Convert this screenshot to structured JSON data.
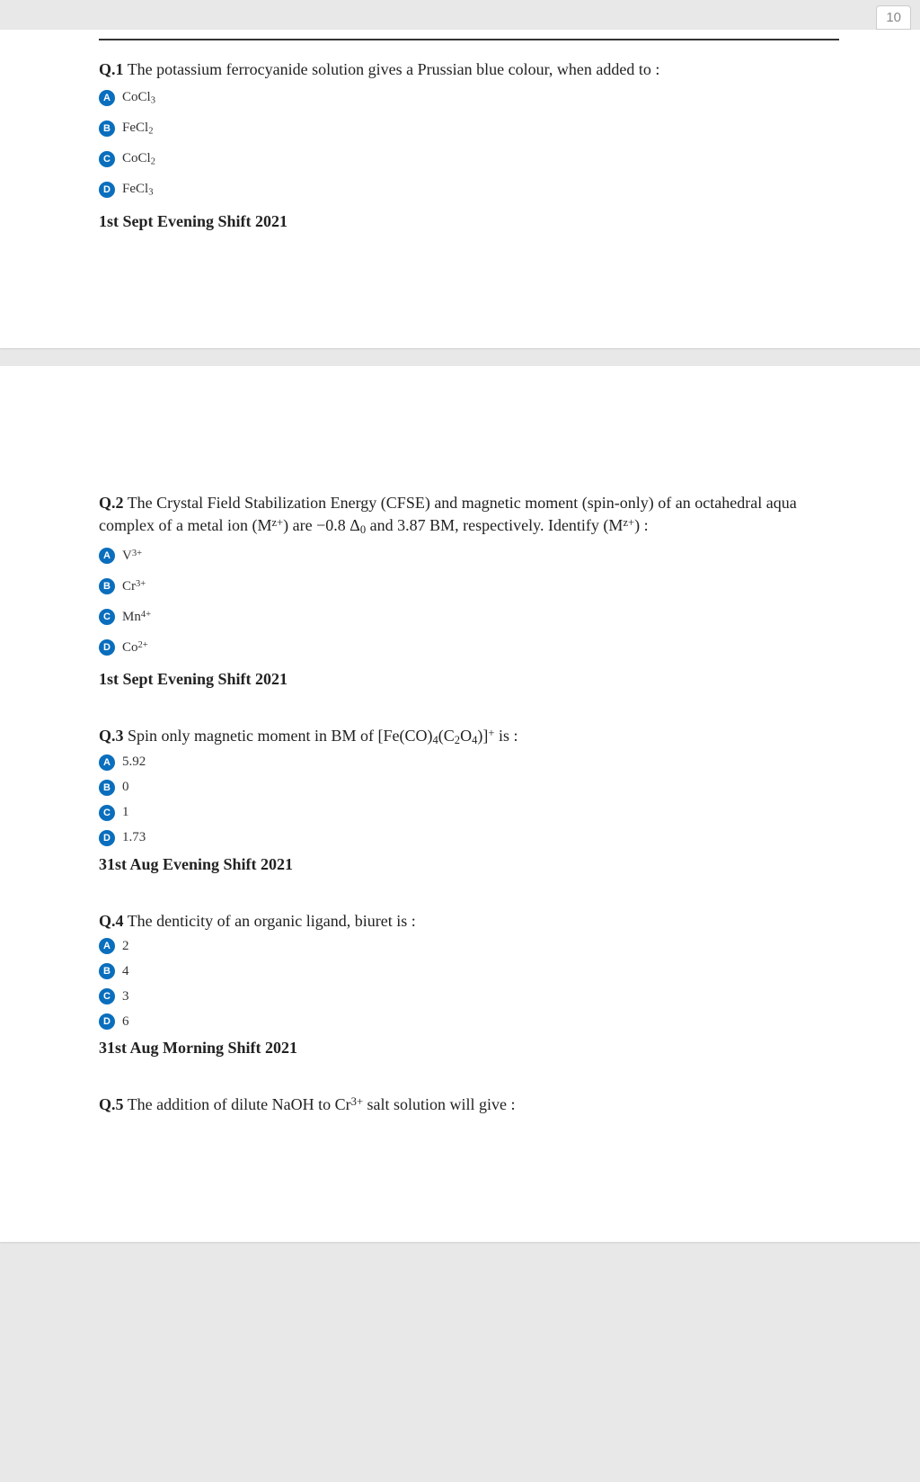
{
  "nav": {
    "label": "10"
  },
  "cards": [
    {
      "questions": [
        {
          "number": "Q.1",
          "text": " The potassium ferrocyanide solution gives a Prussian blue colour, when added to :",
          "options": [
            {
              "letter": "A",
              "html": "CoCl<sub>3</sub>"
            },
            {
              "letter": "B",
              "html": "FeCl<sub>2</sub>"
            },
            {
              "letter": "C",
              "html": "CoCl<sub>2</sub>"
            },
            {
              "letter": "D",
              "html": "FeCl<sub>3</sub>"
            }
          ],
          "shift": "1st Sept Evening Shift 2021"
        }
      ]
    },
    {
      "questions": [
        {
          "number": "Q.2",
          "text": " The Crystal Field Stabilization Energy (CFSE) and magnetic moment (spin-only) of an octahedral aqua complex of a metal ion (M<sup>z+</sup>) are −0.8 Δ<sub>0</sub> and 3.87 BM, respectively. Identify (M<sup>z+</sup>) :",
          "options": [
            {
              "letter": "A",
              "html": "V<sup>3+</sup>"
            },
            {
              "letter": "B",
              "html": "Cr<sup>3+</sup>"
            },
            {
              "letter": "C",
              "html": "Mn<sup>4+</sup>"
            },
            {
              "letter": "D",
              "html": "Co<sup>2+</sup>"
            }
          ],
          "shift": "1st Sept Evening Shift 2021"
        },
        {
          "number": "Q.3",
          "text": " Spin only magnetic moment in BM of [Fe(CO)<sub>4</sub>(C<sub>2</sub>O<sub>4</sub>)]<sup>+</sup> is :",
          "options": [
            {
              "letter": "A",
              "html": "5.92"
            },
            {
              "letter": "B",
              "html": "0"
            },
            {
              "letter": "C",
              "html": "1"
            },
            {
              "letter": "D",
              "html": "1.73"
            }
          ],
          "shift": "31st Aug Evening Shift 2021"
        },
        {
          "number": "Q.4",
          "text": " The denticity of an organic ligand, biuret is :",
          "options": [
            {
              "letter": "A",
              "html": "2"
            },
            {
              "letter": "B",
              "html": "4"
            },
            {
              "letter": "C",
              "html": "3"
            },
            {
              "letter": "D",
              "html": "6"
            }
          ],
          "shift": "31st Aug Morning Shift 2021"
        },
        {
          "number": "Q.5",
          "text": " The addition of dilute NaOH to Cr<sup>3+</sup> salt solution will give :",
          "options": [],
          "shift": ""
        }
      ]
    }
  ],
  "styles": {
    "badge_color": "#0a6ebd",
    "badge_text": "#ffffff",
    "background": "#e8e8e8",
    "card_bg": "#ffffff",
    "text_color": "#222222"
  }
}
